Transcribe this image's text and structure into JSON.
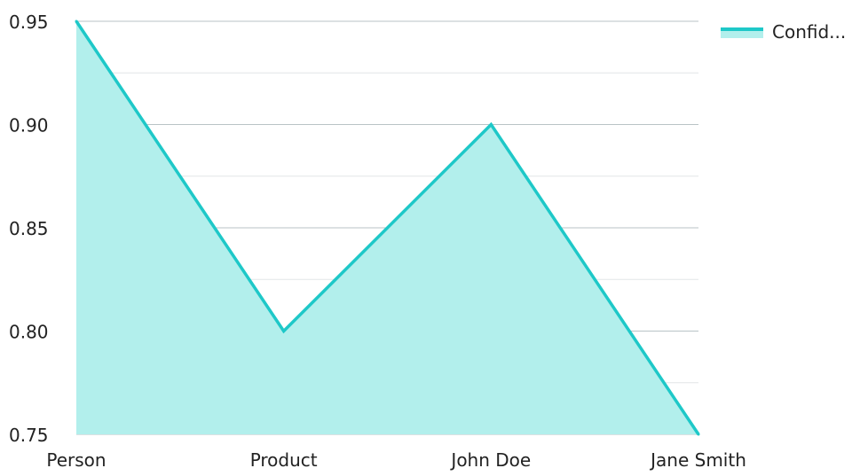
{
  "chart_data": {
    "type": "area",
    "categories": [
      "Person",
      "Product",
      "John Doe",
      "Jane Smith"
    ],
    "series": [
      {
        "name": "Confid...",
        "values": [
          0.95,
          0.8,
          0.9,
          0.75
        ]
      }
    ],
    "ylim": [
      0.75,
      0.95
    ],
    "yticks": [
      "0.95",
      "0.90",
      "0.85",
      "0.80",
      "0.75"
    ],
    "grid": true,
    "legend_position": "top-right"
  },
  "colors": {
    "line": "#1ec8c8",
    "fill": "#b2efec",
    "grid_major": "#b9c3c6",
    "grid_minor": "#e2e6e7"
  }
}
